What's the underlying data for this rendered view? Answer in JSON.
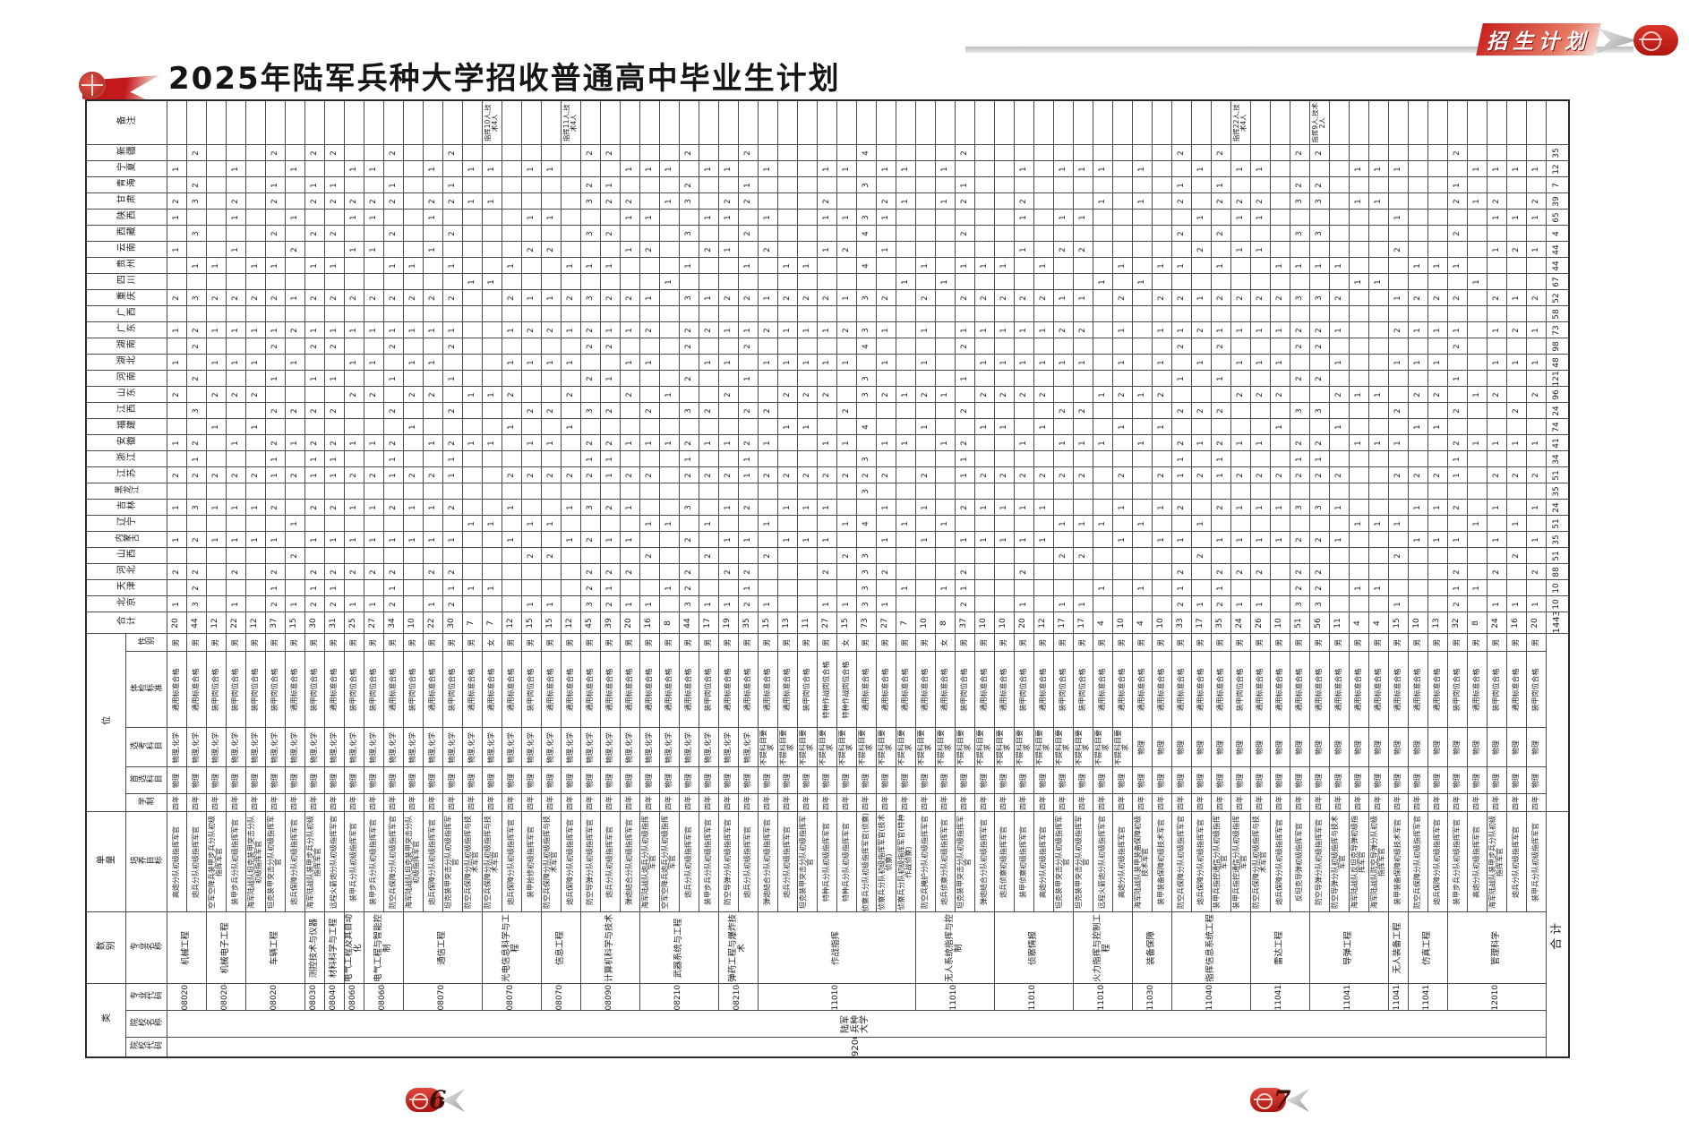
{
  "page": {
    "title": "2025年陆军兵种大学招收普通高中毕业生计划",
    "banner": "招生计划",
    "footer_left_page": "6",
    "footer_right_page": "7",
    "accent_red": "#c8201d"
  },
  "table": {
    "school": {
      "code": "92065",
      "name": "陆军兵种大学"
    },
    "group_headers": {
      "g1": "类",
      "g2": "数别",
      "g3": "单量",
      "g4": "位"
    },
    "headers": {
      "school_code": "院校代码",
      "school_name": "院校名称",
      "major_code": "专业代码",
      "major_name": "专业名称",
      "goal": "培养目标",
      "years": "学制",
      "first_subject": "首选科目",
      "second_subject": "选考科目",
      "medical": "体检标准",
      "sex": "性别",
      "total": "合计",
      "note": "备注"
    },
    "total_row_label": "合计",
    "grand_total": "1443",
    "provinces": [
      {
        "name": "北京",
        "total": "10"
      },
      {
        "name": "天津",
        "total": "10"
      },
      {
        "name": "河北",
        "total": "88"
      },
      {
        "name": "山西",
        "total": "51"
      },
      {
        "name": "内蒙古",
        "total": "35"
      },
      {
        "name": "辽宁",
        "total": "51"
      },
      {
        "name": "吉林",
        "total": "24"
      },
      {
        "name": "黑龙江",
        "total": "35"
      },
      {
        "name": "江苏",
        "total": "51"
      },
      {
        "name": "浙江",
        "total": "34"
      },
      {
        "name": "安徽",
        "total": "41"
      },
      {
        "name": "福建",
        "total": "74"
      },
      {
        "name": "江西",
        "total": "24"
      },
      {
        "name": "山东",
        "total": "96"
      },
      {
        "name": "河南",
        "total": "121"
      },
      {
        "name": "湖北",
        "total": "48"
      },
      {
        "name": "湖南",
        "total": "98"
      },
      {
        "name": "广东",
        "total": "73"
      },
      {
        "name": "广西",
        "total": "58"
      },
      {
        "name": "重庆",
        "total": "52"
      },
      {
        "name": "四川",
        "total": "67"
      },
      {
        "name": "贵州",
        "total": "44"
      },
      {
        "name": "云南",
        "total": "44"
      },
      {
        "name": "西藏",
        "total": "4"
      },
      {
        "name": "陕西",
        "total": "65"
      },
      {
        "name": "甘肃",
        "total": "39"
      },
      {
        "name": "青海",
        "total": "7"
      },
      {
        "name": "宁夏",
        "total": "12"
      },
      {
        "name": "新疆",
        "total": "35"
      }
    ],
    "patterns": {
      "A": ".1...1....1..1......1....1.1.",
      "B": "1.1..2..1..1.2...1..1.1..2..1",
      "C": "1.2.1.1.2.1..2.1.1.2..1.12.1.",
      "D": "212.1.2.112.2.1.21.2.1.2.21.2",
      "E": "322.2.3.212.3.2.22.3.1.3.32.2",
      "F": "3333.4.323.4.33.43.3.4.43.3.4",
      "G": "....1.1.2..1.2.1.1.2.1.......",
      "H": "1..2.1..2.1.2..1.2.1..2.1..1."
    },
    "majors": [
      {
        "code": "080201",
        "name": "机械工程",
        "rows": 2
      },
      {
        "code": "080204",
        "name": "机械电子工程",
        "rows": 2
      },
      {
        "code": "080207",
        "name": "车辆工程",
        "rows": 3
      },
      {
        "code": "080301",
        "name": "测控技术与仪器",
        "rows": 1
      },
      {
        "code": "080401",
        "name": "材料科学与工程",
        "rows": 1
      },
      {
        "code": "080601",
        "name": "电气工程及其自动化",
        "rows": 1
      },
      {
        "code": "080604",
        "name": "电气工程与智能控制",
        "rows": 2
      },
      {
        "code": "080703",
        "name": "通信工程",
        "rows": 4
      },
      {
        "code": "080705",
        "name": "光电信息科学与工程",
        "rows": 3
      },
      {
        "code": "080706",
        "name": "信息工程",
        "rows": 2
      },
      {
        "code": "080901",
        "name": "计算机科学与技术",
        "rows": 3
      },
      {
        "code": "082101",
        "name": "武器系统与工程",
        "rows": 4
      },
      {
        "code": "082104",
        "name": "弹药工程与爆炸技术",
        "rows": 2
      },
      {
        "code": "110101",
        "name": "作战指挥",
        "rows": 8
      },
      {
        "code": "110102",
        "name": "无人系统指挥与控制",
        "rows": 4
      },
      {
        "code": "110105",
        "name": "侦察情报",
        "rows": 4
      },
      {
        "code": "110108",
        "name": "火力指挥与控制工程",
        "rows": 3
      },
      {
        "code": "110301",
        "name": "装备保障",
        "rows": 2
      },
      {
        "code": "110403",
        "name": "指挥信息系统工程",
        "rows": 4
      },
      {
        "code": "110412",
        "name": "雷达工程",
        "rows": 3
      },
      {
        "code": "110413",
        "name": "导弹工程",
        "rows": 4
      },
      {
        "code": "110414",
        "name": "无人装备工程",
        "rows": 1
      },
      {
        "code": "110415",
        "name": "仿真工程",
        "rows": 2
      },
      {
        "code": "120101",
        "name": "管理科学",
        "rows": 5
      }
    ],
    "years_value": "四年",
    "first_subject_value": "物理",
    "rows": [
      {
        "goal": "高炮分队初级指挥军官",
        "sel": "物理,化学",
        "med": "通用标准合格",
        "sex": "男",
        "total": "20",
        "note": "",
        "p": "C"
      },
      {
        "goal": "炮兵分队初级指挥军官",
        "sel": "物理,化学",
        "med": "通用标准合格",
        "sex": "男",
        "total": "44",
        "note": "",
        "p": "E"
      },
      {
        "goal": "空军空降兵装甲步兵分队初级指挥军官",
        "sel": "物理,化学",
        "med": "装甲岗位合格",
        "sex": "男",
        "total": "12",
        "note": "",
        "p": "G"
      },
      {
        "goal": "装甲步兵分队初级指挥军官",
        "sel": "物理,化学",
        "med": "装甲岗位合格",
        "sex": "男",
        "total": "22",
        "note": "",
        "p": "C"
      },
      {
        "goal": "海军陆战队坦克装甲突击分队初级指挥军官",
        "sel": "物理,化学",
        "med": "装甲岗位合格",
        "sex": "男",
        "total": "12",
        "note": "",
        "p": "G"
      },
      {
        "goal": "坦克装甲突击分队初级指挥军官",
        "sel": "物理,化学",
        "med": "装甲岗位合格",
        "sex": "男",
        "total": "37",
        "note": "",
        "p": "D"
      },
      {
        "goal": "炮兵保障分队初级指挥军官",
        "sel": "物理,化学",
        "med": "通用标准合格",
        "sex": "男",
        "total": "15",
        "note": "",
        "p": "H"
      },
      {
        "goal": "海军陆战队装甲步兵分队初级指挥军官",
        "sel": "物理,化学",
        "med": "装甲岗位合格",
        "sex": "男",
        "total": "30",
        "note": "",
        "p": "D"
      },
      {
        "goal": "远程火箭炮分队初级指挥军官",
        "sel": "物理,化学",
        "med": "通用标准合格",
        "sex": "男",
        "total": "31",
        "note": "",
        "p": "D"
      },
      {
        "goal": "装甲兵分队初级指挥军官",
        "sel": "物理,化学",
        "med": "装甲岗位合格",
        "sex": "男",
        "total": "25",
        "note": "",
        "p": "C"
      },
      {
        "goal": "装甲步兵分队初级指挥军官",
        "sel": "物理,化学",
        "med": "装甲岗位合格",
        "sex": "男",
        "total": "27",
        "note": "",
        "p": "C"
      },
      {
        "goal": "防空兵保障分队初级指挥军官",
        "sel": "物理,化学",
        "med": "通用标准合格",
        "sex": "男",
        "total": "34",
        "note": "",
        "p": "D"
      },
      {
        "goal": "海军陆战队坦克装甲突击分队初级指挥军官",
        "sel": "物理,化学",
        "med": "装甲岗位合格",
        "sex": "男",
        "total": "10",
        "note": "",
        "p": "G"
      },
      {
        "goal": "炮兵保障分队初级指挥军官",
        "sel": "物理,化学",
        "med": "通用标准合格",
        "sex": "男",
        "total": "22",
        "note": "",
        "p": "C"
      },
      {
        "goal": "坦克装甲突击分队初级指挥军官",
        "sel": "物理,化学",
        "med": "装甲岗位合格",
        "sex": "男",
        "total": "30",
        "note": "",
        "p": "D"
      },
      {
        "goal": "防空兵保障分队初级指挥与技术军官",
        "sel": "物理,化学",
        "med": "通用标准合格",
        "sex": "男",
        "total": "7",
        "note": "",
        "p": "A"
      },
      {
        "goal": "防空兵保障分队初级指挥与技术军官",
        "sel": "物理,化学",
        "med": "通用标准合格",
        "sex": "女",
        "total": "7",
        "note": "指挥10人,技术4人",
        "p": "A"
      },
      {
        "goal": "炮兵保障分队初级指挥军官",
        "sel": "物理,化学",
        "med": "通用标准合格",
        "sex": "男",
        "total": "12",
        "note": "",
        "p": "G"
      },
      {
        "goal": "装甲抢修初级指挥军官",
        "sel": "物理,化学",
        "med": "装甲岗位合格",
        "sex": "男",
        "total": "15",
        "note": "",
        "p": "H"
      },
      {
        "goal": "防空兵保障分队初级指挥与技术军官",
        "sel": "物理,化学",
        "med": "通用标准合格",
        "sex": "男",
        "total": "15",
        "note": "",
        "p": "H"
      },
      {
        "goal": "炮兵保障分队初级指挥军官",
        "sel": "物理,化学",
        "med": "通用标准合格",
        "sex": "男",
        "total": "12",
        "note": "指挥11人,技术4人",
        "p": "G"
      },
      {
        "goal": "防空导弹分队初级指挥军官",
        "sel": "物理,化学",
        "med": "通用标准合格",
        "sex": "男",
        "total": "45",
        "note": "",
        "p": "E"
      },
      {
        "goal": "炮兵分队初级指挥军官",
        "sel": "物理,化学",
        "med": "通用标准合格",
        "sex": "男",
        "total": "39",
        "note": "",
        "p": "D"
      },
      {
        "goal": "弹炮结合分队初级指挥军官",
        "sel": "物理,化学",
        "med": "通用标准合格",
        "sex": "男",
        "total": "20",
        "note": "",
        "p": "C"
      },
      {
        "goal": "海军陆战队炮兵分队初级指挥军官",
        "sel": "物理,化学",
        "med": "通用标准合格",
        "sex": "男",
        "total": "16",
        "note": "",
        "p": "H"
      },
      {
        "goal": "空军空降兵炮兵分队初级指挥军官",
        "sel": "物理,化学",
        "med": "通用标准合格",
        "sex": "男",
        "total": "8",
        "note": "",
        "p": "A"
      },
      {
        "goal": "炮兵分队初级指挥军官",
        "sel": "物理,化学",
        "med": "通用标准合格",
        "sex": "男",
        "total": "44",
        "note": "",
        "p": "E"
      },
      {
        "goal": "装甲步兵分队初级指挥军官",
        "sel": "物理,化学",
        "med": "装甲岗位合格",
        "sex": "男",
        "total": "17",
        "note": "",
        "p": "H"
      },
      {
        "goal": "防空导弹分队初级指挥军官",
        "sel": "物理,化学",
        "med": "通用标准合格",
        "sex": "男",
        "total": "19",
        "note": "",
        "p": "C"
      },
      {
        "goal": "炮兵分队初级指挥军官",
        "sel": "物理,化学",
        "med": "通用标准合格",
        "sex": "男",
        "total": "35",
        "note": "",
        "p": "D"
      },
      {
        "goal": "弹炮结合分队初级指挥军官",
        "sel": "不提科目要求",
        "med": "通用标准合格",
        "sex": "男",
        "total": "15",
        "note": "",
        "p": "H"
      },
      {
        "goal": "炮兵分队初级指挥军官",
        "sel": "不提科目要求",
        "med": "通用标准合格",
        "sex": "男",
        "total": "13",
        "note": "",
        "p": "G"
      },
      {
        "goal": "坦克装甲突击分队初级指挥军官",
        "sel": "不提科目要求",
        "med": "装甲岗位合格",
        "sex": "男",
        "total": "11",
        "note": "",
        "p": "G"
      },
      {
        "goal": "特种兵分队初级指挥军官",
        "sel": "不提科目要求",
        "med": "特种作战岗位合格",
        "sex": "男",
        "total": "27",
        "note": "",
        "p": "C"
      },
      {
        "goal": "特种兵分队初级指挥军官",
        "sel": "不提科目要求",
        "med": "特种作战岗位合格",
        "sex": "女",
        "total": "15",
        "note": "",
        "p": "H"
      },
      {
        "goal": "侦察兵分队初级指挥军官(侦察)",
        "sel": "不提科目要求",
        "med": "通用标准合格",
        "sex": "男",
        "total": "73",
        "note": "",
        "p": "F"
      },
      {
        "goal": "侦察兵分队初级指挥军官(技术侦察)",
        "sel": "不提科目要求",
        "med": "通用标准合格",
        "sex": "男",
        "total": "27",
        "note": "",
        "p": "C"
      },
      {
        "goal": "侦察兵分队初级指挥军官(特种作战侦察)",
        "sel": "不提科目要求",
        "med": "通用标准合格",
        "sex": "男",
        "total": "7",
        "note": "",
        "p": "A"
      },
      {
        "goal": "防空兵掩护分队初级指挥军官",
        "sel": "不提科目要求",
        "med": "通用标准合格",
        "sex": "男",
        "total": "10",
        "note": "",
        "p": "G"
      },
      {
        "goal": "炮兵侦察分队初级指挥军官",
        "sel": "不提科目要求",
        "med": "通用标准合格",
        "sex": "女",
        "total": "8",
        "note": "",
        "p": "A"
      },
      {
        "goal": "坦克装甲突击分队初级指挥军官",
        "sel": "不提科目要求",
        "med": "装甲岗位合格",
        "sex": "男",
        "total": "37",
        "note": "",
        "p": "D"
      },
      {
        "goal": "弹炮结合分队初级指挥军官",
        "sel": "不提科目要求",
        "med": "通用标准合格",
        "sex": "男",
        "total": "10",
        "note": "",
        "p": "G"
      },
      {
        "goal": "炮兵侦察初级指挥军官",
        "sel": "不提科目要求",
        "med": "通用标准合格",
        "sex": "男",
        "total": "10",
        "note": "",
        "p": "G"
      },
      {
        "goal": "装甲侦察初级指挥军官",
        "sel": "不提科目要求",
        "med": "装甲岗位合格",
        "sex": "男",
        "total": "20",
        "note": "",
        "p": "C"
      },
      {
        "goal": "高炮分队初级指挥军官",
        "sel": "不提科目要求",
        "med": "通用标准合格",
        "sex": "男",
        "total": "12",
        "note": "",
        "p": "G"
      },
      {
        "goal": "坦克装甲突击分队初级指挥军官",
        "sel": "不提科目要求",
        "med": "装甲岗位合格",
        "sex": "男",
        "total": "17",
        "note": "",
        "p": "H"
      },
      {
        "goal": "坦克装甲突击分队初级指挥军官",
        "sel": "不提科目要求",
        "med": "装甲岗位合格",
        "sex": "男",
        "total": "17",
        "note": "",
        "p": "H"
      },
      {
        "goal": "远程火箭炮分队初级指挥军官",
        "sel": "不提科目要求",
        "med": "通用标准合格",
        "sex": "男",
        "total": "4",
        "note": "",
        "p": "A"
      },
      {
        "goal": "高炮分队初级指挥军官",
        "sel": "不提科目要求",
        "med": "通用标准合格",
        "sex": "男",
        "total": "10",
        "note": "",
        "p": "G"
      },
      {
        "goal": "海军陆战队装甲装备保障初级技术军官",
        "sel": "物理",
        "med": "通用标准合格",
        "sex": "男",
        "total": "4",
        "note": "",
        "p": "A"
      },
      {
        "goal": "装甲装备保障初级技术军官",
        "sel": "物理",
        "med": "通用标准合格",
        "sex": "男",
        "total": "10",
        "note": "",
        "p": "G"
      },
      {
        "goal": "防空兵保障分队初级指挥军官",
        "sel": "物理",
        "med": "通用标准合格",
        "sex": "男",
        "total": "33",
        "note": "",
        "p": "D"
      },
      {
        "goal": "炮兵保障分队初级指挥军官",
        "sel": "物理",
        "med": "通用标准合格",
        "sex": "男",
        "total": "17",
        "note": "",
        "p": "H"
      },
      {
        "goal": "装甲兵指控通信分队初级指挥军官",
        "sel": "物理",
        "med": "通用标准合格",
        "sex": "男",
        "total": "35",
        "note": "",
        "p": "D"
      },
      {
        "goal": "装甲兵指控通信分队初级指挥军官",
        "sel": "物理",
        "med": "装甲岗位合格",
        "sex": "男",
        "total": "24",
        "note": "指挥22人,技术4人",
        "p": "C"
      },
      {
        "goal": "防空兵保障分队初级指挥与技术军官",
        "sel": "物理",
        "med": "通用标准合格",
        "sex": "男",
        "total": "26",
        "note": "",
        "p": "C"
      },
      {
        "goal": "炮兵保障分队初级指挥军官",
        "sel": "物理",
        "med": "通用标准合格",
        "sex": "男",
        "total": "10",
        "note": "",
        "p": "G"
      },
      {
        "goal": "反坦克导弹初级指挥军官",
        "sel": "物理",
        "med": "通用标准合格",
        "sex": "男",
        "total": "51",
        "note": "",
        "p": "E"
      },
      {
        "goal": "防空导弹分队初级指挥军官",
        "sel": "物理",
        "med": "通用标准合格",
        "sex": "男",
        "total": "56",
        "note": "指挥9人,技术2人",
        "p": "E"
      },
      {
        "goal": "防空导弹分队初级指挥与技术军官",
        "sel": "物理",
        "med": "通用标准合格",
        "sex": "男",
        "total": "11",
        "note": "",
        "p": "G"
      },
      {
        "goal": "海军陆战队反坦克导弹初级指挥军官",
        "sel": "物理",
        "med": "通用标准合格",
        "sex": "男",
        "total": "4",
        "note": "",
        "p": "A"
      },
      {
        "goal": "海军陆战队防空导弹分队初级指挥军官",
        "sel": "物理",
        "med": "通用标准合格",
        "sex": "男",
        "total": "4",
        "note": "",
        "p": "A"
      },
      {
        "goal": "装甲装备保障初级技术军官",
        "sel": "物理",
        "med": "通用标准合格",
        "sex": "男",
        "total": "15",
        "note": "",
        "p": "H"
      },
      {
        "goal": "防空兵保障分队初级指挥军官",
        "sel": "物理",
        "med": "通用标准合格",
        "sex": "男",
        "total": "10",
        "note": "",
        "p": "G"
      },
      {
        "goal": "炮兵保障分队初级指挥军官",
        "sel": "物理",
        "med": "通用标准合格",
        "sex": "男",
        "total": "13",
        "note": "",
        "p": "G"
      },
      {
        "goal": "装甲步兵分队初级指挥军官",
        "sel": "物理",
        "med": "装甲岗位合格",
        "sex": "男",
        "total": "32",
        "note": "",
        "p": "D"
      },
      {
        "goal": "高炮分队初级指挥军官",
        "sel": "物理",
        "med": "通用标准合格",
        "sex": "男",
        "total": "8",
        "note": "",
        "p": "A"
      },
      {
        "goal": "海军陆战队装甲步兵分队初级指挥军官",
        "sel": "物理",
        "med": "装甲岗位合格",
        "sex": "男",
        "total": "24",
        "note": "",
        "p": "C"
      },
      {
        "goal": "炮兵分队初级指挥军官",
        "sel": "物理",
        "med": "通用标准合格",
        "sex": "男",
        "total": "16",
        "note": "",
        "p": "H"
      },
      {
        "goal": "装甲兵分队初级指挥军官",
        "sel": "物理",
        "med": "装甲岗位合格",
        "sex": "男",
        "total": "20",
        "note": "",
        "p": "C"
      }
    ]
  }
}
